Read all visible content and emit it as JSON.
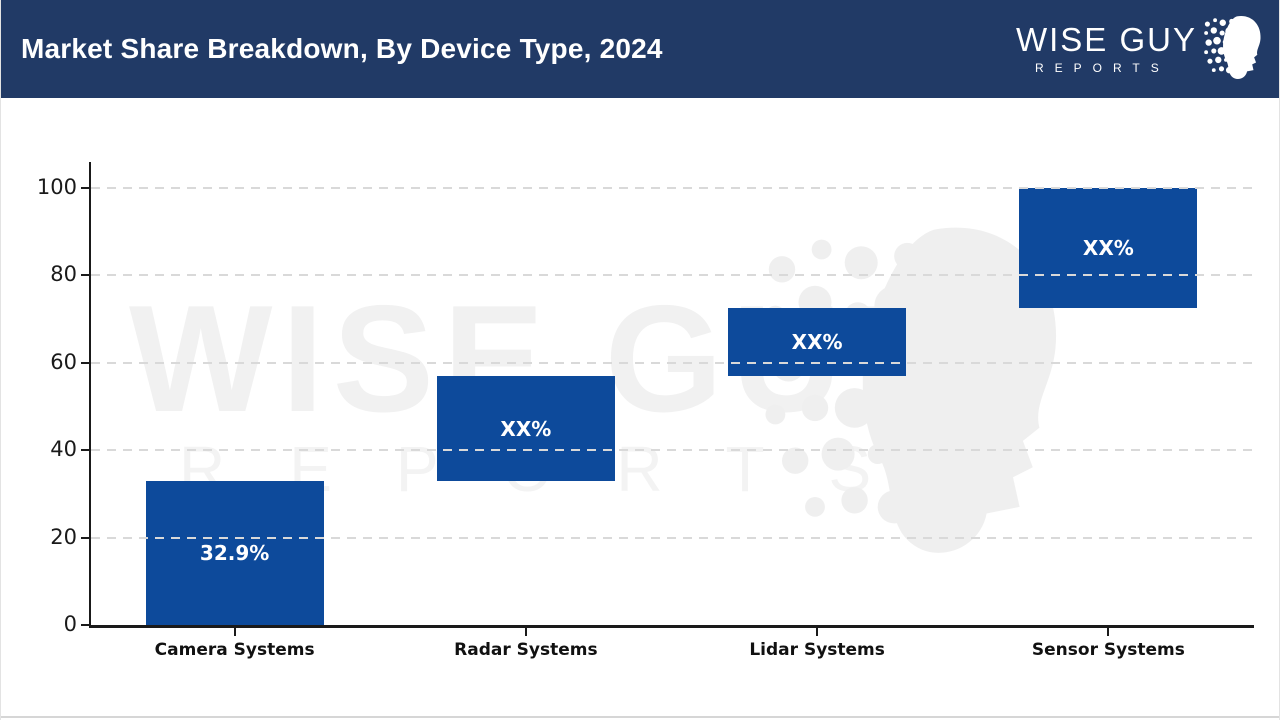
{
  "header": {
    "title": "Market Share Breakdown, By Device Type, 2024",
    "bg_color": "#213a66",
    "logo": {
      "line1": "WISE GUY",
      "line2": "REPORTS"
    }
  },
  "watermark": {
    "line1": "WISE GUY",
    "line2": "REPORTS"
  },
  "chart_data": {
    "type": "bar",
    "variant": "waterfall",
    "title": "Market Share Breakdown, By Device Type, 2024",
    "categories": [
      "Camera Systems",
      "Radar Systems",
      "Lidar Systems",
      "Sensor Systems"
    ],
    "segments": [
      {
        "category": "Camera Systems",
        "start": 0,
        "end": 32.9,
        "label": "32.9%"
      },
      {
        "category": "Radar Systems",
        "start": 32.9,
        "end": 56.9,
        "label": "XX%"
      },
      {
        "category": "Lidar Systems",
        "start": 56.9,
        "end": 72.5,
        "label": "XX%"
      },
      {
        "category": "Sensor Systems",
        "start": 72.5,
        "end": 100,
        "label": "XX%"
      }
    ],
    "xlabel": "",
    "ylabel": "",
    "ylim": [
      0,
      100
    ],
    "yticks": [
      0,
      20,
      40,
      60,
      80,
      100
    ],
    "grid": "horizontal-dashed",
    "legend": "none",
    "bar_color": "#0d4a9b",
    "value_label_color": "#ffffff"
  }
}
